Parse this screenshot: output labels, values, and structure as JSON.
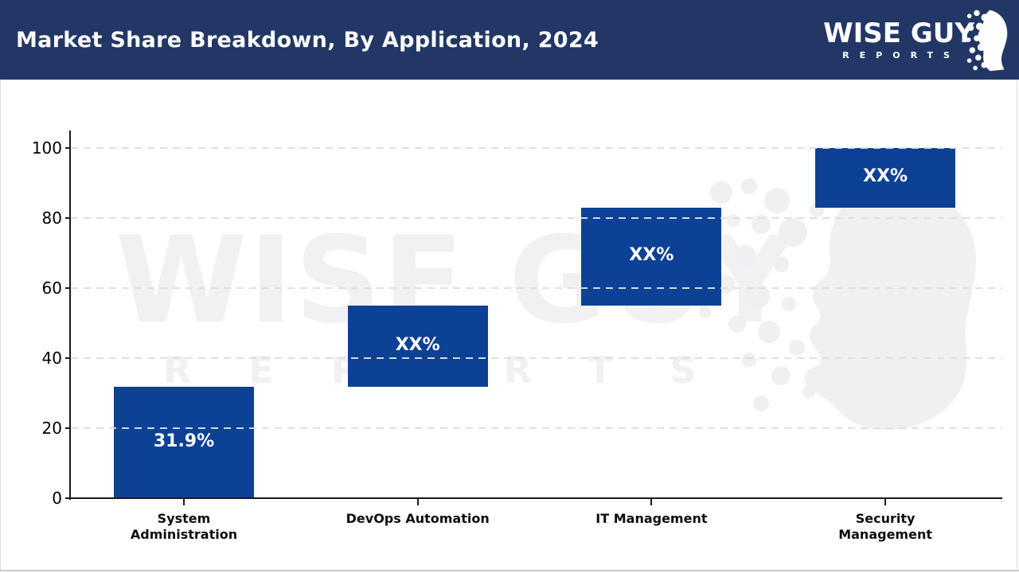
{
  "header": {
    "title": "Market Share Breakdown, By Application, 2024",
    "bg_color": "#223765",
    "logo": {
      "name": "WISE GUY",
      "subtitle": "REPORTS"
    }
  },
  "watermark": {
    "line1": "WISE GUY",
    "line2": "REPORTS"
  },
  "chart_data": {
    "type": "bar",
    "subtype": "waterfall",
    "title": "Market Share Breakdown, By Application, 2024",
    "categories": [
      "System Administration",
      "DevOps Automation",
      "IT Management",
      "Security Management"
    ],
    "category_lines": [
      [
        "System",
        "Administration"
      ],
      [
        "DevOps Automation"
      ],
      [
        "IT Management"
      ],
      [
        "Security",
        "Management"
      ]
    ],
    "segments": [
      {
        "category": "System Administration",
        "start": 0,
        "end": 31.9,
        "label": "31.9%"
      },
      {
        "category": "DevOps Automation",
        "start": 31.9,
        "end": 55,
        "label": "XX%"
      },
      {
        "category": "IT Management",
        "start": 55,
        "end": 83,
        "label": "XX%"
      },
      {
        "category": "Security Management",
        "start": 83,
        "end": 100,
        "label": "XX%"
      }
    ],
    "yticks": [
      0,
      20,
      40,
      60,
      80,
      100
    ],
    "ylim": [
      0,
      105
    ],
    "bar_color": "#0d4195",
    "bar_label_color": "#ffffff",
    "axis_color": "#1a1a1a",
    "grid": "horizontal-dashed",
    "legend": "none"
  }
}
